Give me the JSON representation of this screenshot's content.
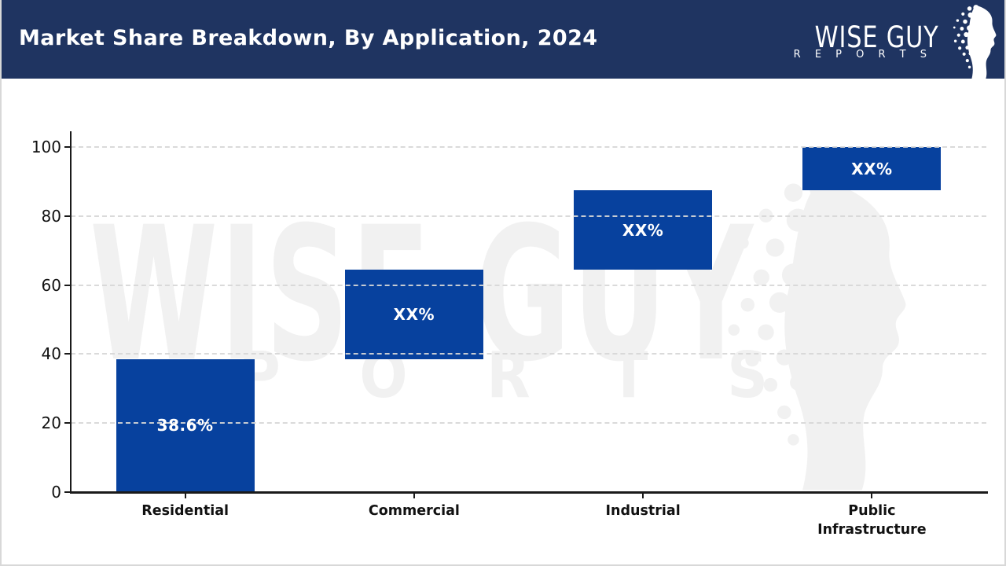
{
  "header": {
    "title": "Market Share Breakdown, By Application, 2024",
    "logo": {
      "line1": "WISE GUY",
      "line2": "R E P O R T S",
      "icon": "dotted-head-profile"
    }
  },
  "watermark": {
    "line1": "WISE GUY",
    "line2": "P O R T S",
    "icon": "dotted-head-profile"
  },
  "chart_data": {
    "type": "bar",
    "subtype": "waterfall-floating-bars",
    "title": "Market Share Breakdown, By Application, 2024",
    "categories": [
      "Residential",
      "Commercial",
      "Industrial",
      "Public Infrastructure"
    ],
    "values": [
      38.6,
      25.9,
      22.9,
      12.6
    ],
    "bars": [
      {
        "category": "Residential",
        "start": 0,
        "end": 38.6,
        "label": "38.6%"
      },
      {
        "category": "Commercial",
        "start": 38.6,
        "end": 64.5,
        "label": "XX%"
      },
      {
        "category": "Industrial",
        "start": 64.5,
        "end": 87.4,
        "label": "XX%"
      },
      {
        "category": "Public Infrastructure",
        "start": 87.4,
        "end": 100,
        "label": "XX%"
      }
    ],
    "xlabel": "",
    "ylabel": "",
    "ylim": [
      0,
      100
    ],
    "yticks": [
      0,
      20,
      40,
      60,
      80,
      100
    ],
    "grid": "horizontal-dashed, drawn above bars",
    "legend": "none"
  },
  "colors": {
    "header_bg": "#1f3461",
    "bar": "#07419e",
    "grid": "#d7d7d7",
    "axis": "#1a1a1a",
    "text": "#111111",
    "watermark": "#f1f1f1",
    "page_border": "#d8d8d8"
  }
}
